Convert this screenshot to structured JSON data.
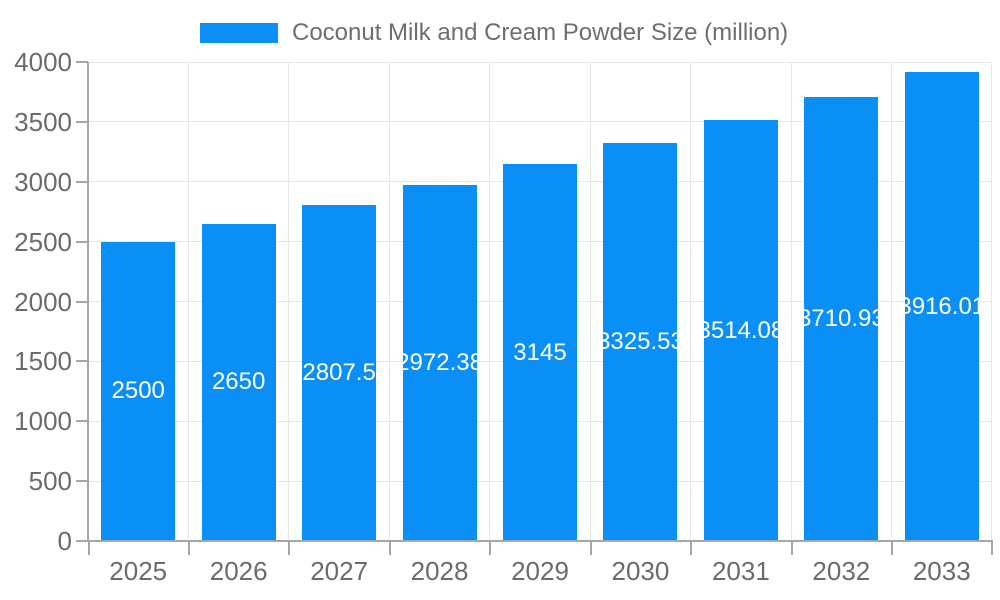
{
  "chart_data": {
    "type": "bar",
    "title": "Coconut Milk and Cream Powder Size (million)",
    "categories": [
      "2025",
      "2026",
      "2027",
      "2028",
      "2029",
      "2030",
      "2031",
      "2032",
      "2033"
    ],
    "values": [
      2500,
      2650,
      2807.5,
      2972.38,
      3145,
      3325.53,
      3514.08,
      3710.93,
      3916.01
    ],
    "bar_value_labels": [
      "2500",
      "2650",
      "2807.5",
      "2972.38",
      "3145",
      "3325.53",
      "3514.08",
      "3710.93",
      "3916.01"
    ],
    "y_ticks": [
      0,
      500,
      1000,
      1500,
      2000,
      2500,
      3000,
      3500,
      4000
    ],
    "ylim": [
      0,
      4000
    ],
    "xlabel": "",
    "ylabel": "",
    "legend_position": "top",
    "grid": true,
    "value_labels_inside_bars": true
  },
  "colors": {
    "bar": "#0a8ff7",
    "grid_line": "#e6e6e6",
    "axis_line": "#a6a6a6",
    "tick_mark": "#b3b3b3",
    "tick_text": "#6b6b6b",
    "legend_text": "#6e6e6e",
    "bar_label_text": "#ffffff",
    "background": "#ffffff"
  }
}
